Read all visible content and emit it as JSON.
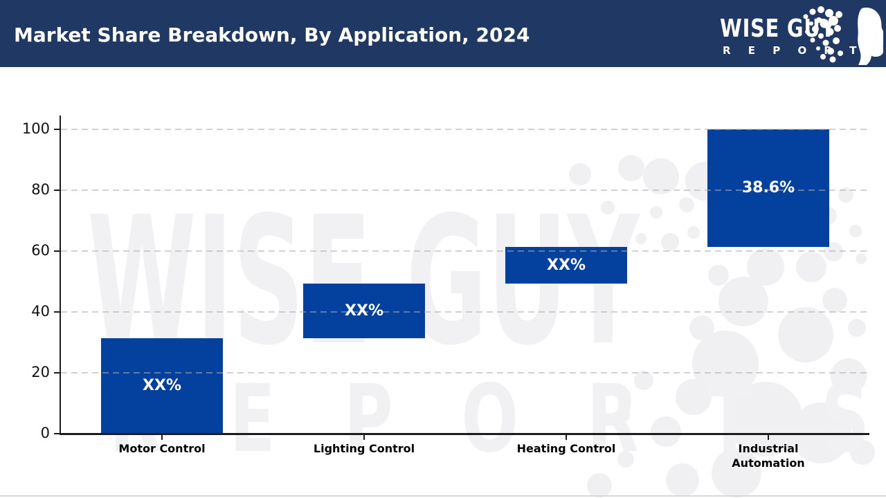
{
  "header": {
    "title": "Market Share Breakdown, By Application, 2024",
    "background_color": "#1f3864",
    "logo": {
      "line1": "WISE GUY",
      "line2": "R E P O R T S"
    }
  },
  "watermark": {
    "line1": "WISE GUY",
    "line2": "R E P O R T S"
  },
  "chart_data": {
    "type": "bar",
    "subtype": "waterfall",
    "title": "Market Share Breakdown, By Application, 2024",
    "categories": [
      "Motor Control",
      "Lighting Control",
      "Heating Control",
      "Industrial Automation"
    ],
    "series": [
      {
        "name": "Market Share %",
        "segments": [
          {
            "start": 0,
            "end": 31.4,
            "label": "XX%"
          },
          {
            "start": 31.4,
            "end": 49.3,
            "label": "XX%"
          },
          {
            "start": 49.3,
            "end": 61.4,
            "label": "XX%"
          },
          {
            "start": 61.4,
            "end": 100,
            "label": "38.6%"
          }
        ],
        "values": [
          31.4,
          17.9,
          12.1,
          38.6
        ]
      }
    ],
    "xlabel": "",
    "ylabel": "",
    "ylim": [
      0,
      100
    ],
    "yticks": [
      0,
      20,
      40,
      60,
      80,
      100
    ],
    "grid": "horizontal-dashed",
    "legend": "none",
    "bar_color": "#04419e",
    "bar_label_color": "#ffffff",
    "gridline_color": "#d9d9d9",
    "axis_color": "#1c1c1c"
  }
}
